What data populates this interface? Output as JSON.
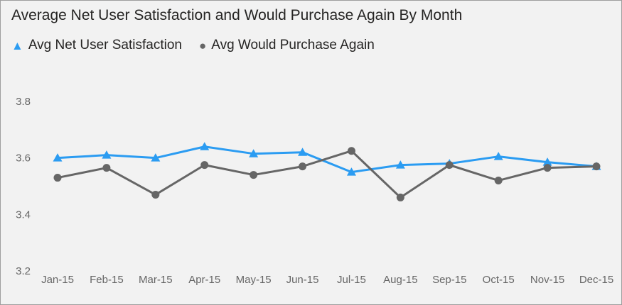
{
  "title": "Average Net User Satisfaction and Would Purchase Again By Month",
  "colors": {
    "background": "#F2F2F2",
    "border": "#9E9E9E",
    "title_text": "#252423",
    "axis_text": "#666666",
    "series1": "#2B9CF2",
    "series2": "#666666"
  },
  "legend": [
    {
      "label": "Avg Net User Satisfaction",
      "marker": "triangle",
      "marker_glyph": "▲",
      "color": "#2B9CF2"
    },
    {
      "label": "Avg Would Purchase Again",
      "marker": "circle",
      "marker_glyph": "●",
      "color": "#666666"
    }
  ],
  "chart_data": {
    "type": "line",
    "title": "Average Net User Satisfaction and Would Purchase Again By Month",
    "categories": [
      "Jan-15",
      "Feb-15",
      "Mar-15",
      "Apr-15",
      "May-15",
      "Jun-15",
      "Jul-15",
      "Aug-15",
      "Sep-15",
      "Oct-15",
      "Nov-15",
      "Dec-15"
    ],
    "series": [
      {
        "name": "Avg Net User Satisfaction",
        "marker": "triangle",
        "color": "#2B9CF2",
        "values": [
          3.6,
          3.61,
          3.6,
          3.64,
          3.615,
          3.62,
          3.55,
          3.575,
          3.58,
          3.605,
          3.585,
          3.57
        ]
      },
      {
        "name": "Avg Would Purchase Again",
        "marker": "circle",
        "color": "#666666",
        "values": [
          3.53,
          3.565,
          3.47,
          3.575,
          3.54,
          3.57,
          3.625,
          3.46,
          3.575,
          3.52,
          3.565,
          3.57
        ]
      }
    ],
    "xlabel": "",
    "ylabel": "",
    "ylim": [
      3.2,
      3.8
    ],
    "yticks": [
      3.2,
      3.4,
      3.6,
      3.8
    ],
    "grid": false,
    "legend_position": "top"
  }
}
